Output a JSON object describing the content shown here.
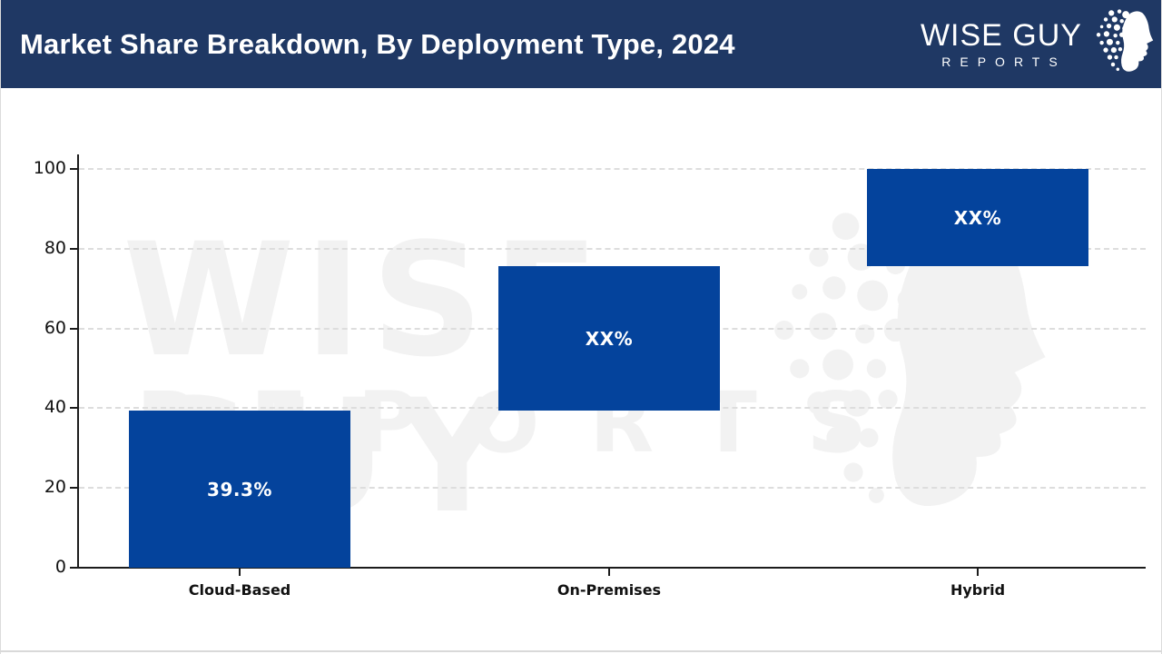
{
  "header": {
    "logo_line1": "WISE GUY",
    "logo_line2": "REPORTS"
  },
  "watermark": {
    "line1": "WISE GUY",
    "line2": "REPORTS"
  },
  "colors": {
    "header_bg": "#1f3864",
    "bar_blue": "#04439c",
    "axis": "#1c1c1c",
    "gridline": "#dddddd",
    "watermark": "#f2f2f2",
    "bar_label": "#ffffff",
    "tick_label": "#111111"
  },
  "chart_data": {
    "type": "bar",
    "variant": "waterfall",
    "title": "Market Share Breakdown, By Deployment Type, 2024",
    "categories": [
      "Cloud-Based",
      "On-Premises",
      "Hybrid"
    ],
    "segments": [
      {
        "category": "Cloud-Based",
        "start": 0,
        "end": 39.3,
        "label": "39.3%"
      },
      {
        "category": "On-Premises",
        "start": 39.3,
        "end": 75.6,
        "label": "XX%"
      },
      {
        "category": "Hybrid",
        "start": 75.6,
        "end": 100,
        "label": "XX%"
      }
    ],
    "yticks": [
      0,
      20,
      40,
      60,
      80,
      100
    ],
    "ylim": [
      0,
      100
    ],
    "xlabel": "",
    "ylabel": "",
    "grid": "horizontal-dashed",
    "legend": "none",
    "bar_color": "#04439c"
  }
}
